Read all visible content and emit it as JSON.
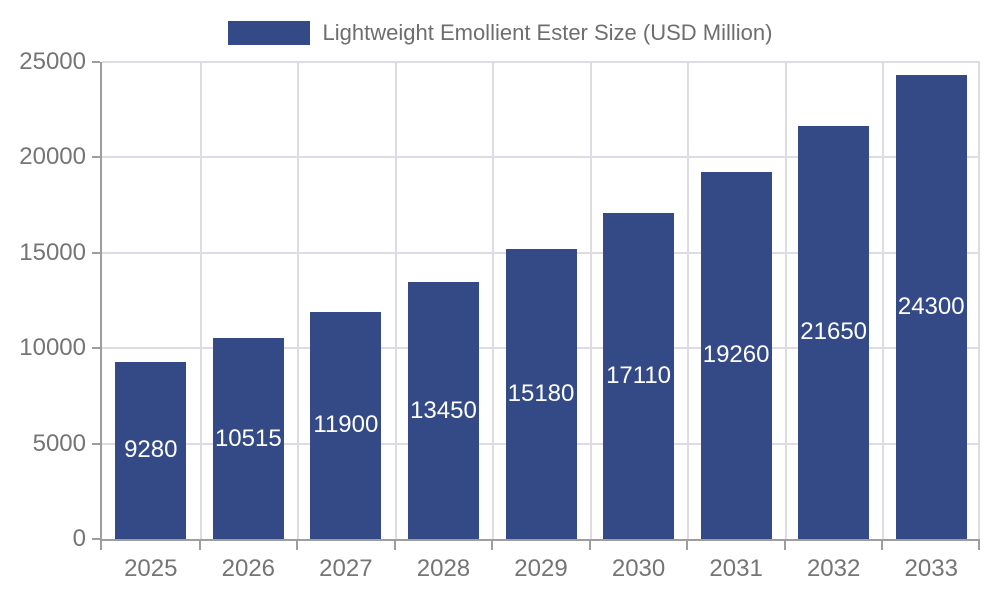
{
  "chart_data": {
    "type": "bar",
    "title": "",
    "series_name": "Lightweight Emollient Ester Size (USD Million)",
    "categories": [
      "2025",
      "2026",
      "2027",
      "2028",
      "2029",
      "2030",
      "2031",
      "2032",
      "2033"
    ],
    "values": [
      9280,
      10515,
      11900,
      13450,
      15180,
      17110,
      19260,
      21650,
      24300
    ],
    "xlabel": "",
    "ylabel": "",
    "ylim": [
      0,
      25000
    ],
    "y_ticks": [
      0,
      5000,
      10000,
      15000,
      20000,
      25000
    ],
    "grid": "on",
    "legend_position": "top-center",
    "bar_labels_visible": true
  },
  "colors": {
    "bar": "#344a86",
    "bar_label": "#ffffff",
    "grid": "#dcdce2",
    "axis": "#9e9e9e",
    "tick": "#aaaaaa",
    "tick_label": "#757575",
    "legend_text": "#6e6e6e",
    "background": "#ffffff"
  }
}
